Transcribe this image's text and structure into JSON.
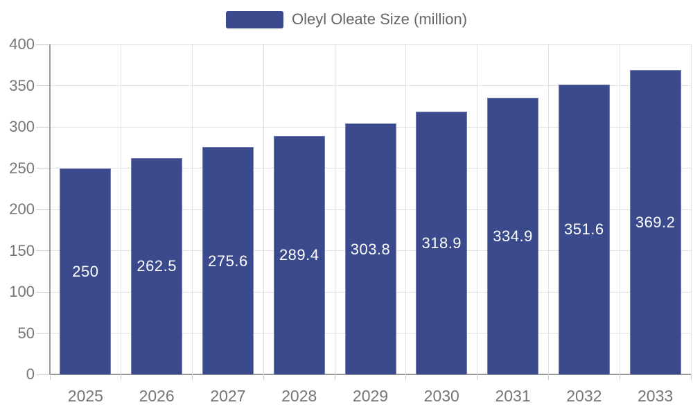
{
  "chart_data": {
    "type": "bar",
    "legend": "Oleyl Oleate Size (million)",
    "legend_position": "top-center",
    "categories": [
      "2025",
      "2026",
      "2027",
      "2028",
      "2029",
      "2030",
      "2031",
      "2032",
      "2033"
    ],
    "values": [
      250,
      262.5,
      275.6,
      289.4,
      303.8,
      318.9,
      334.9,
      351.6,
      369.2
    ],
    "value_labels": [
      "250",
      "262.5",
      "275.6",
      "289.4",
      "303.8",
      "318.9",
      "334.9",
      "351.6",
      "369.2"
    ],
    "value_label_position": "center-of-bar",
    "ylim": [
      0,
      400
    ],
    "yticks": [
      0,
      50,
      100,
      150,
      200,
      250,
      300,
      350,
      400
    ],
    "grid": true,
    "colors": {
      "bar": "#3A4A8C",
      "grid": "#E0E0E4",
      "axis_line": "#9A9A9A",
      "tick": "#CCCCCC",
      "axis_label": "#757575",
      "legend_label": "#666666",
      "bar_label": "#FFFFFF"
    }
  }
}
